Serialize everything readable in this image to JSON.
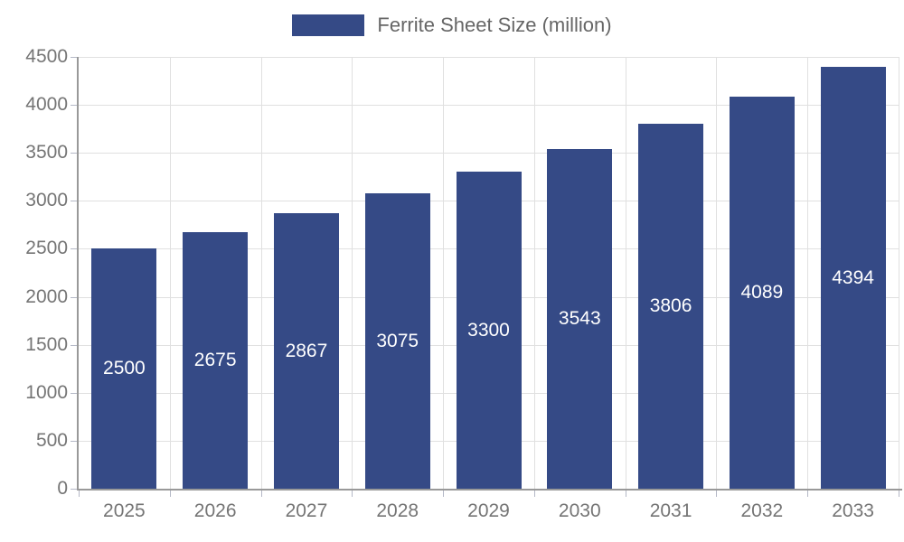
{
  "chart_data": {
    "type": "bar",
    "title": "",
    "legend": [
      "Ferrite Sheet Size (million)"
    ],
    "categories": [
      "2025",
      "2026",
      "2027",
      "2028",
      "2029",
      "2030",
      "2031",
      "2032",
      "2033"
    ],
    "values": [
      2500,
      2675,
      2867,
      3075,
      3300,
      3543,
      3806,
      4089,
      4394
    ],
    "xlabel": "",
    "ylabel": "",
    "ylim": [
      0,
      4500
    ],
    "y_ticks": [
      0,
      500,
      1000,
      1500,
      2000,
      2500,
      3000,
      3500,
      4000,
      4500
    ],
    "grid": true,
    "legend_position": "top-center",
    "value_labels": "inside-center",
    "colors": {
      "bar": "#354A86",
      "grid": "#e0e0e0",
      "axis": "#999999",
      "tick": "#b4b8c6",
      "axis_label": "#757575",
      "legend_text": "#666666",
      "value_label": "#ffffff",
      "background": "#ffffff"
    }
  }
}
